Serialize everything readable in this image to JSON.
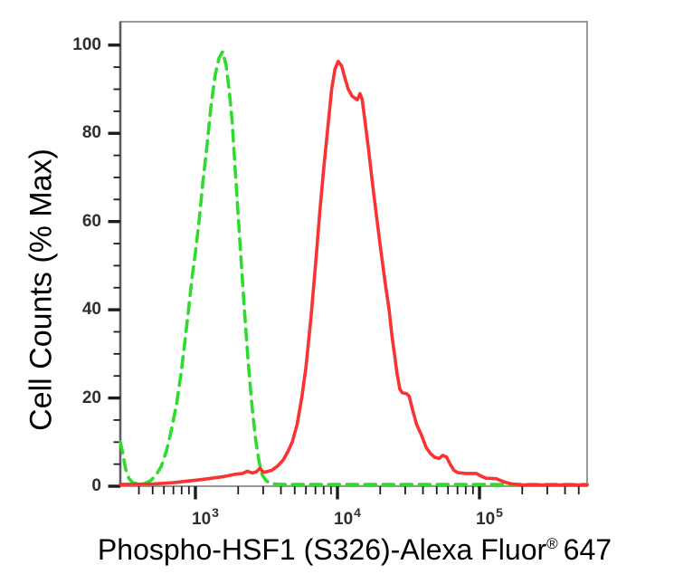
{
  "chart_data": {
    "type": "line",
    "subtype": "flow-cytometry-histogram",
    "title": "",
    "ylabel": "Cell Counts (% Max)",
    "xlabel": {
      "prefix": "Phospho-HSF1 (S326)-Alexa Fluor",
      "sup": "®",
      "suffix": "647"
    },
    "x_scale": "log",
    "xlim": [
      296,
      573000
    ],
    "ylim": [
      0,
      105.3
    ],
    "grid": false,
    "legend": "none",
    "y_ticks": [
      0,
      20,
      40,
      60,
      80,
      100
    ],
    "y_minor_step": 5,
    "x_major_ticks": [
      {
        "value": 1000,
        "base": "10",
        "exp": "3"
      },
      {
        "value": 10000,
        "base": "10",
        "exp": "4"
      },
      {
        "value": 100000,
        "base": "10",
        "exp": "5"
      }
    ],
    "colors": {
      "green_curve": "#2edc2e",
      "red_curve": "#f93232",
      "frame": "#979797",
      "left_axis": "#5f5f5f",
      "ticks": "#1c1c1c",
      "tick_text": "#2e2e2e",
      "title_text": "#000000"
    },
    "series": [
      {
        "name": "green-dashed-control",
        "style": "dashed",
        "color": "#2edc2e",
        "points": [
          [
            296,
            10
          ],
          [
            308,
            7.5
          ],
          [
            322,
            4
          ],
          [
            340,
            1.8
          ],
          [
            362,
            0.8
          ],
          [
            395,
            0.5
          ],
          [
            440,
            0.6
          ],
          [
            485,
            1.3
          ],
          [
            530,
            2.6
          ],
          [
            575,
            4.5
          ],
          [
            625,
            8
          ],
          [
            680,
            13
          ],
          [
            740,
            19
          ],
          [
            795,
            26
          ],
          [
            845,
            33
          ],
          [
            895,
            40
          ],
          [
            945,
            47
          ],
          [
            1000,
            53
          ],
          [
            1060,
            60
          ],
          [
            1130,
            69
          ],
          [
            1205,
            77
          ],
          [
            1285,
            86
          ],
          [
            1375,
            93
          ],
          [
            1465,
            97
          ],
          [
            1555,
            98.5
          ],
          [
            1645,
            95.5
          ],
          [
            1725,
            90
          ],
          [
            1810,
            83
          ],
          [
            1905,
            72
          ],
          [
            2005,
            61
          ],
          [
            2110,
            50
          ],
          [
            2225,
            39
          ],
          [
            2355,
            28
          ],
          [
            2505,
            18
          ],
          [
            2655,
            10.5
          ],
          [
            2810,
            5.5
          ],
          [
            2960,
            2.5
          ],
          [
            3160,
            1.2
          ],
          [
            3410,
            0.6
          ],
          [
            3810,
            0.45
          ],
          [
            4600,
            0.4
          ],
          [
            6000,
            0.4
          ],
          [
            8000,
            0.4
          ],
          [
            12000,
            0.4
          ],
          [
            20000,
            0.4
          ],
          [
            35000,
            0.4
          ],
          [
            60000,
            0.4
          ],
          [
            100000,
            0.4
          ],
          [
            180000,
            0.4
          ],
          [
            320000,
            0.4
          ],
          [
            573000,
            0.4
          ]
        ]
      },
      {
        "name": "red-solid-stained",
        "style": "solid",
        "color": "#f93232",
        "points": [
          [
            296,
            0.4
          ],
          [
            500,
            0.5
          ],
          [
            700,
            0.8
          ],
          [
            900,
            1.2
          ],
          [
            1100,
            1.5
          ],
          [
            1300,
            1.8
          ],
          [
            1600,
            2.2
          ],
          [
            1900,
            2.7
          ],
          [
            2150,
            2.9
          ],
          [
            2320,
            3.4
          ],
          [
            2520,
            3.0
          ],
          [
            2700,
            3.3
          ],
          [
            2850,
            4.1
          ],
          [
            3000,
            3.2
          ],
          [
            3200,
            3.3
          ],
          [
            3440,
            3.6
          ],
          [
            3800,
            4.6
          ],
          [
            4160,
            6
          ],
          [
            4500,
            8
          ],
          [
            4800,
            10
          ],
          [
            5200,
            14
          ],
          [
            5600,
            20
          ],
          [
            6000,
            27
          ],
          [
            6500,
            38
          ],
          [
            7000,
            50
          ],
          [
            7500,
            62
          ],
          [
            8000,
            72
          ],
          [
            8600,
            82
          ],
          [
            9100,
            90
          ],
          [
            9600,
            94.5
          ],
          [
            10100,
            96.3
          ],
          [
            10700,
            95.3
          ],
          [
            11300,
            92.5
          ],
          [
            11900,
            90
          ],
          [
            12700,
            88.4
          ],
          [
            13800,
            87.6
          ],
          [
            14400,
            89
          ],
          [
            14900,
            87.8
          ],
          [
            15600,
            83
          ],
          [
            16600,
            76
          ],
          [
            17600,
            69
          ],
          [
            18700,
            62
          ],
          [
            20100,
            54
          ],
          [
            21600,
            46.5
          ],
          [
            23100,
            40
          ],
          [
            24200,
            34
          ],
          [
            25200,
            30
          ],
          [
            26300,
            25.5
          ],
          [
            27500,
            22
          ],
          [
            28600,
            21.2
          ],
          [
            30600,
            21
          ],
          [
            32000,
            20.4
          ],
          [
            33700,
            17.5
          ],
          [
            36100,
            14
          ],
          [
            39100,
            11.5
          ],
          [
            42100,
            8.8
          ],
          [
            45100,
            7.4
          ],
          [
            48600,
            6.5
          ],
          [
            52100,
            6.3
          ],
          [
            55100,
            7
          ],
          [
            58600,
            6.6
          ],
          [
            62100,
            5
          ],
          [
            66100,
            3.6
          ],
          [
            70100,
            3.1
          ],
          [
            80100,
            2.9
          ],
          [
            95100,
            2.9
          ],
          [
            101000,
            2.4
          ],
          [
            111000,
            1.8
          ],
          [
            131000,
            1.7
          ],
          [
            151000,
            0.9
          ],
          [
            171000,
            0.5
          ],
          [
            201000,
            0.3
          ],
          [
            573000,
            0.3
          ]
        ]
      }
    ]
  }
}
